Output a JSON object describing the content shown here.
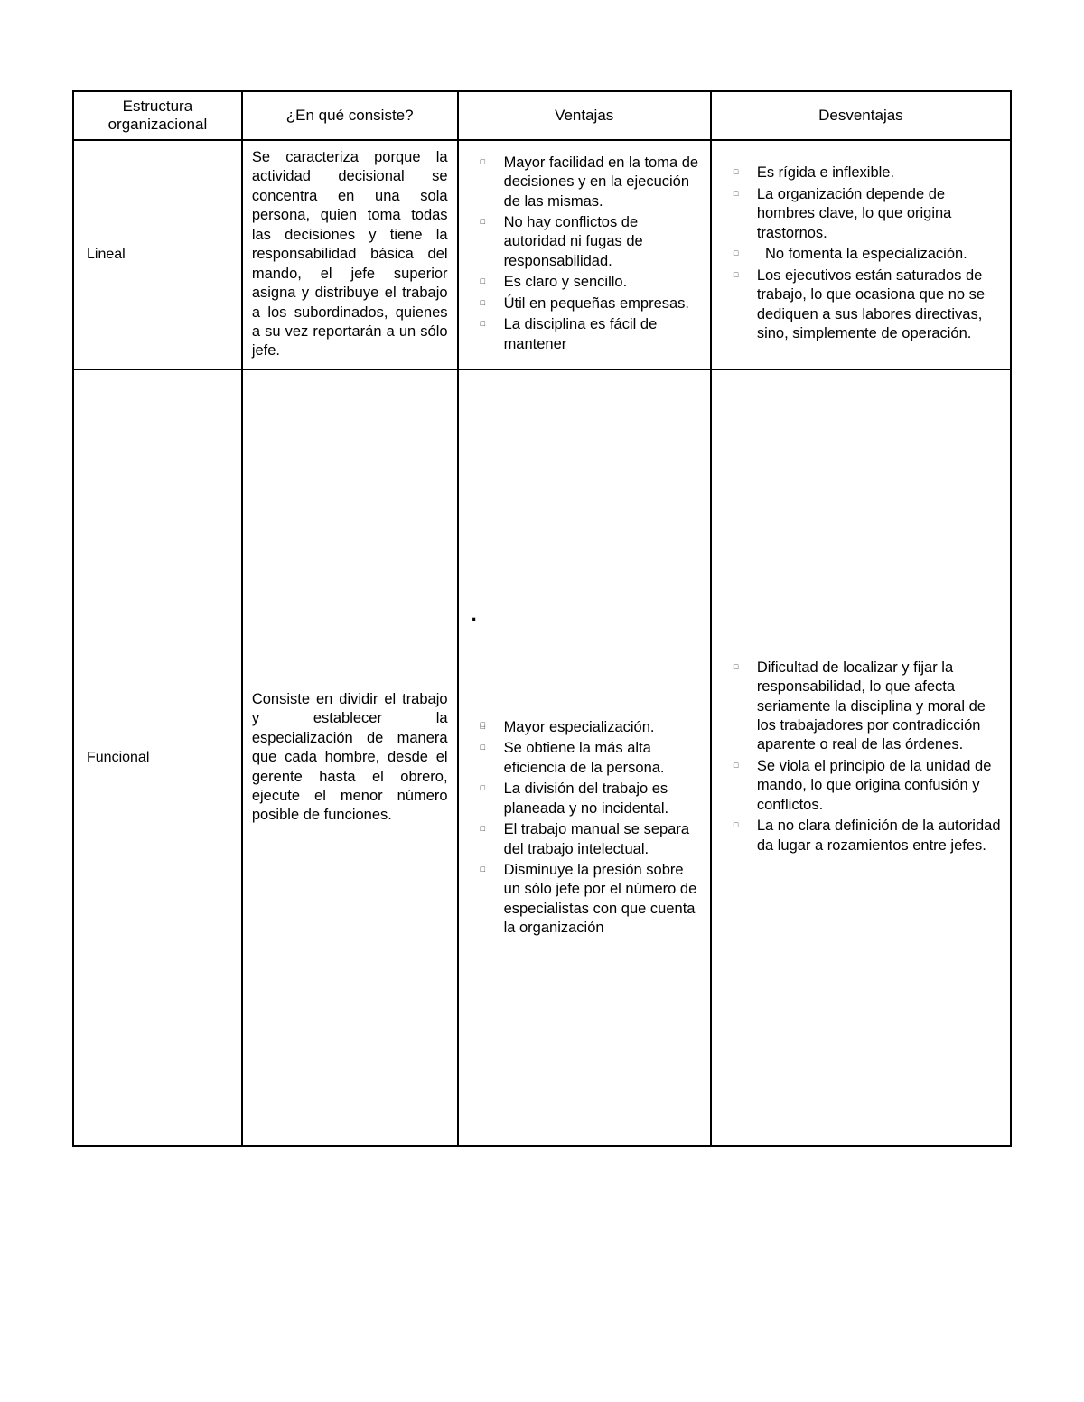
{
  "headers": {
    "c0": "Estructura organizacional",
    "c1": "¿En qué consiste?",
    "c2": "Ventajas",
    "c3": "Desventajas"
  },
  "rows": [
    {
      "label": "Lineal",
      "desc": "Se caracteriza porque la actividad decisional se concentra en una sola persona, quien toma todas las decisiones y tiene la responsabilidad básica del mando, el jefe superior asigna y distribuye el trabajo a los subordinados, quienes a su vez reportarán a un sólo jefe.",
      "adv": [
        "Mayor facilidad en la toma de decisiones y en la ejecución de las mismas.",
        "No hay conflictos de autoridad ni fugas de responsabilidad.",
        "Es claro y sencillo.",
        "Útil en pequeñas empresas.",
        "La disciplina es fácil de mantener"
      ],
      "dis": [
        "Es rígida e inflexible.",
        "La organización depende de hombres clave, lo que origina trastornos.",
        "  No fomenta la especialización.",
        "Los ejecutivos están saturados de trabajo, lo que ocasiona que no se dediquen a sus labores directivas, sino, simplemente de operación."
      ]
    },
    {
      "label": "Funcional",
      "desc": "Consiste en dividir el trabajo y establecer la especialización de manera que cada hombre, desde el gerente hasta el obrero, ejecute el menor número posible de funciones.",
      "adv": [
        "",
        "Mayor especialización.",
        "Se obtiene la más alta eficiencia de la persona.",
        "La división del trabajo es planeada y no incidental.",
        "El trabajo manual se separa del trabajo intelectual.",
        "Disminuye la presión sobre un sólo jefe por el número de especialistas con que cuenta la organización"
      ],
      "dis": [
        "Dificultad de localizar y fijar la responsabilidad, lo que afecta seriamente la disciplina y moral de los trabajadores por contradicción aparente o real de las órdenes.",
        "Se viola el principio de la unidad de mando, lo que origina confusión y conflictos.",
        "La no clara definición de la autoridad da lugar a rozamientos entre jefes."
      ]
    }
  ]
}
